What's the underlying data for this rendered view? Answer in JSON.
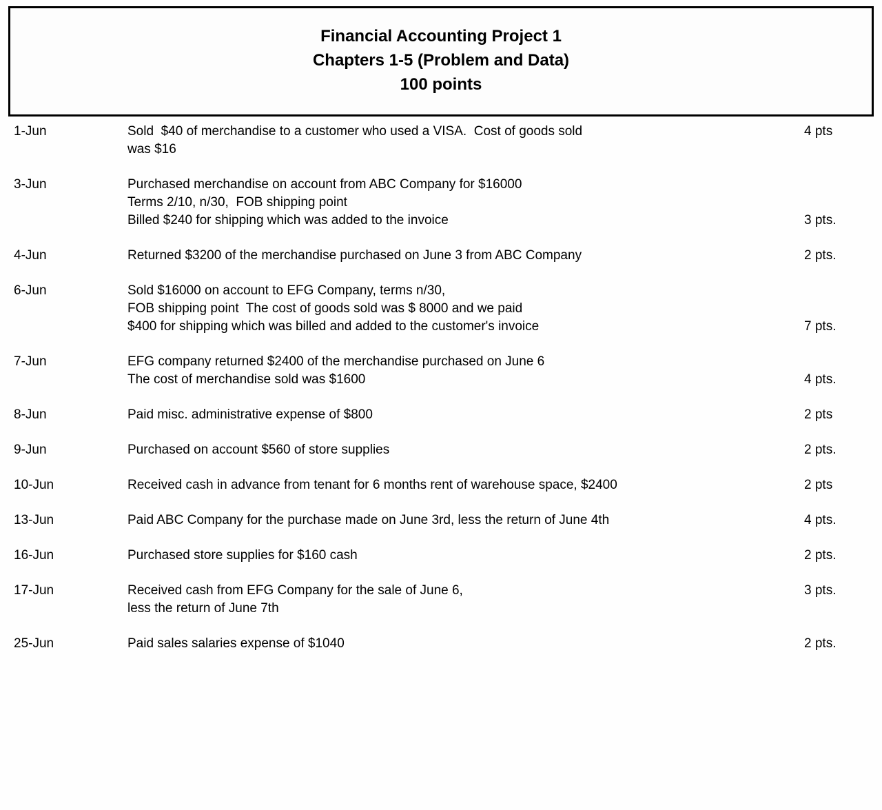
{
  "header": {
    "title_lines": [
      "Financial Accounting Project 1",
      "Chapters 1-5 (Problem and Data)",
      "100 points"
    ]
  },
  "rows": [
    {
      "date": "1-Jun",
      "lines": [
        "Sold  $40 of merchandise to a customer who used a VISA.  Cost of goods sold",
        "was $16"
      ],
      "pts": "4 pts",
      "pts_line": 0
    },
    {
      "date": "3-Jun",
      "lines": [
        "Purchased merchandise on account from ABC Company for $16000",
        "Terms 2/10, n/30,  FOB shipping point",
        "Billed $240 for shipping which was added to the invoice"
      ],
      "pts": "3 pts.",
      "pts_line": 2
    },
    {
      "date": "4-Jun",
      "lines": [
        "Returned $3200 of the merchandise purchased on June 3 from ABC Company"
      ],
      "pts": "2 pts.",
      "pts_line": 0
    },
    {
      "date": "6-Jun",
      "lines": [
        "Sold $16000 on account to EFG Company, terms n/30,",
        "FOB shipping point  The cost of goods sold was $ 8000 and we paid",
        "$400 for shipping which was billed and added to the customer's invoice"
      ],
      "pts": "7 pts.",
      "pts_line": 2
    },
    {
      "date": "7-Jun",
      "lines": [
        "EFG company returned $2400 of the merchandise purchased on June 6",
        "The cost of merchandise sold was $1600"
      ],
      "pts": "4 pts.",
      "pts_line": 1
    },
    {
      "date": "8-Jun",
      "lines": [
        "Paid misc. administrative expense of $800"
      ],
      "pts": "2 pts",
      "pts_line": 0
    },
    {
      "date": "9-Jun",
      "lines": [
        "Purchased on account $560 of store supplies"
      ],
      "pts": "2 pts.",
      "pts_line": 0
    },
    {
      "date": "10-Jun",
      "lines": [
        "Received cash in advance from tenant for 6 months rent of warehouse space, $2400"
      ],
      "pts": "2 pts",
      "pts_line": 0
    },
    {
      "date": "13-Jun",
      "lines": [
        "Paid ABC Company for the purchase made on June 3rd, less the return of June 4th"
      ],
      "pts": "4 pts.",
      "pts_line": 0
    },
    {
      "date": "16-Jun",
      "lines": [
        "Purchased store supplies for $160 cash"
      ],
      "pts": "2 pts.",
      "pts_line": 0
    },
    {
      "date": "17-Jun",
      "lines": [
        "Received cash from EFG Company for the sale of June 6,",
        "less the return of June 7th"
      ],
      "pts": "3 pts.",
      "pts_line": 0
    },
    {
      "date": "25-Jun",
      "lines": [
        "Paid sales salaries expense of $1040"
      ],
      "pts": "2 pts.",
      "pts_line": 0
    }
  ]
}
